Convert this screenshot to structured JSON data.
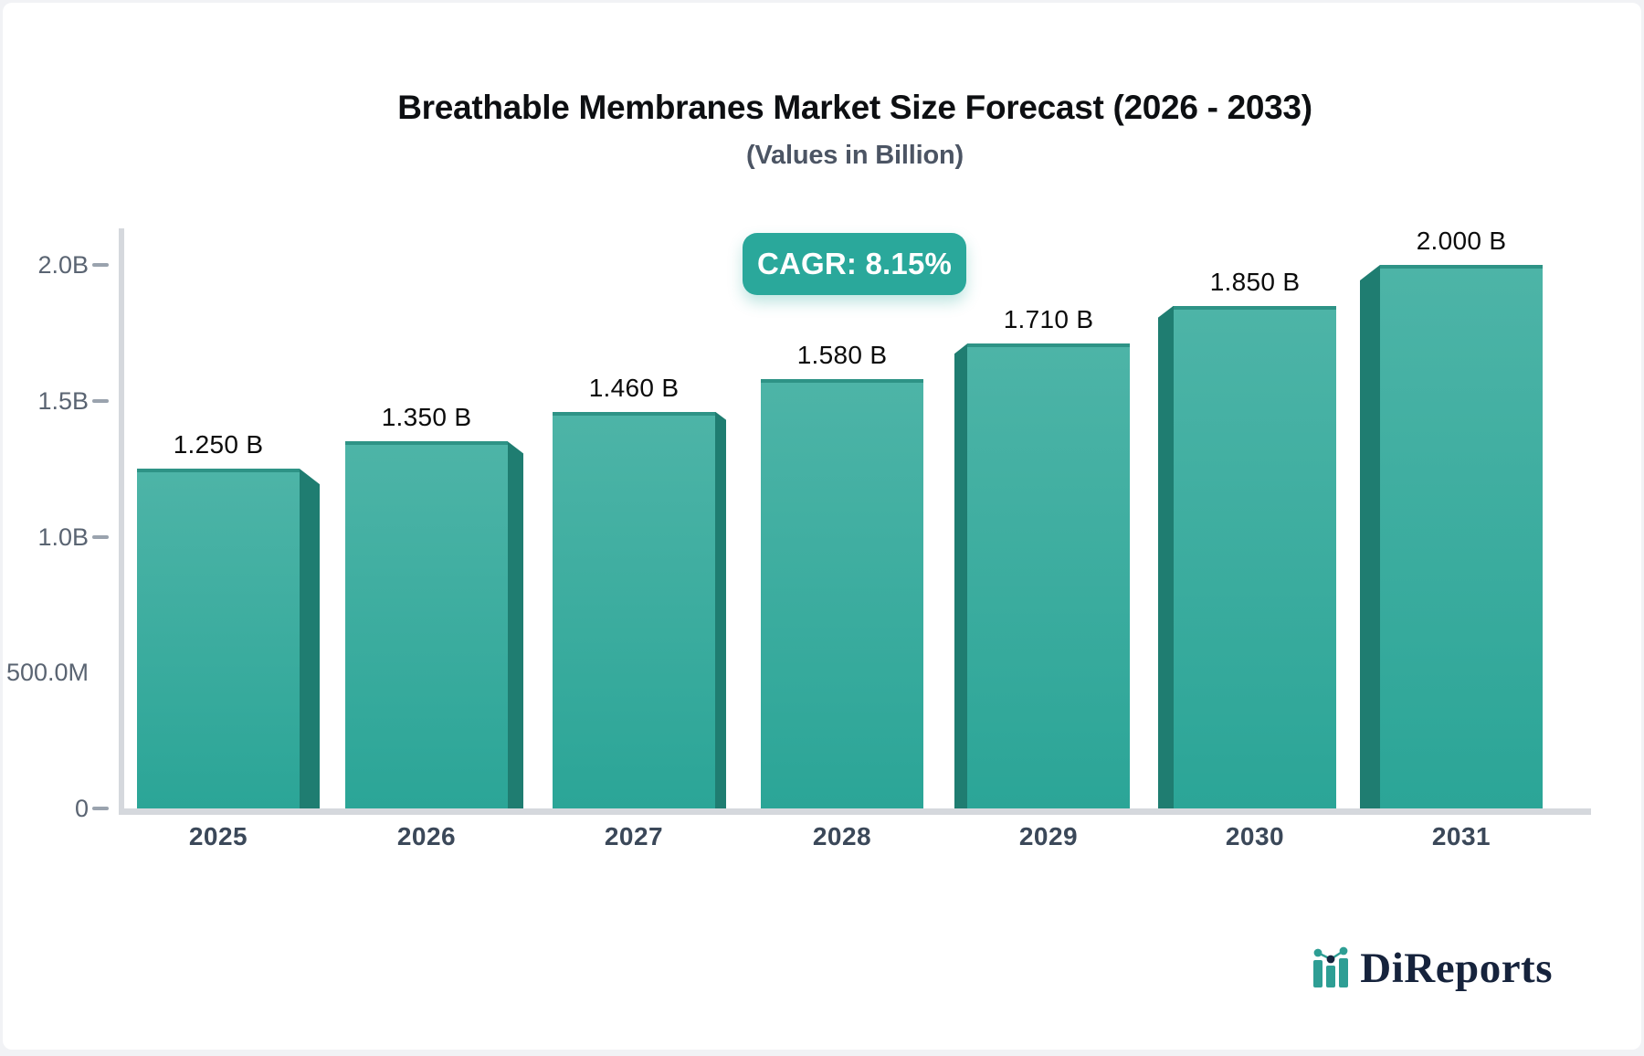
{
  "header": {
    "title": "Breathable Membranes Market Size Forecast (2026 - 2033)",
    "subtitle": "(Values in Billion)"
  },
  "badge": {
    "label": "CAGR: 8.15%"
  },
  "brand": {
    "name": "DiReports",
    "icon": "mini-bar-line-chart-icon"
  },
  "chart_data": {
    "type": "bar",
    "title": "Breathable Membranes Market Size Forecast (2026 - 2033)",
    "subtitle": "(Values in Billion)",
    "unit": "Billion USD",
    "cagr": "8.15%",
    "categories": [
      "2025",
      "2026",
      "2027",
      "2028",
      "2029",
      "2030",
      "2031"
    ],
    "values": [
      1.25,
      1.35,
      1.46,
      1.58,
      1.71,
      1.85,
      2.0
    ],
    "bar_labels": [
      "1.250 B",
      "1.350 B",
      "1.460 B",
      "1.580 B",
      "1.710 B",
      "1.850 B",
      "2.000 B"
    ],
    "ylim": [
      0,
      2.0
    ],
    "y_ticks": [
      {
        "label": "2.0B",
        "value": 2.0,
        "tick": true
      },
      {
        "label": "1.5B",
        "value": 1.5,
        "tick": true
      },
      {
        "label": "1.0B",
        "value": 1.0,
        "tick": true
      },
      {
        "label": "500.0M",
        "value": 0.5,
        "tick": false
      },
      {
        "label": "0",
        "value": 0.0,
        "tick": true
      }
    ],
    "grid": false,
    "legend": false,
    "colors": {
      "bar_face_top": "#4db4a7",
      "bar_face_bottom": "#2ba597",
      "bar_top_edge": "#2e9386",
      "bar_side": "#1f7d71",
      "badge_bg": "#2aa89b",
      "axis": "#d5d8dd",
      "tick_dash": "#9aa3ae",
      "brand_teal": "#2e9e94",
      "brand_navy": "#16233c"
    }
  }
}
